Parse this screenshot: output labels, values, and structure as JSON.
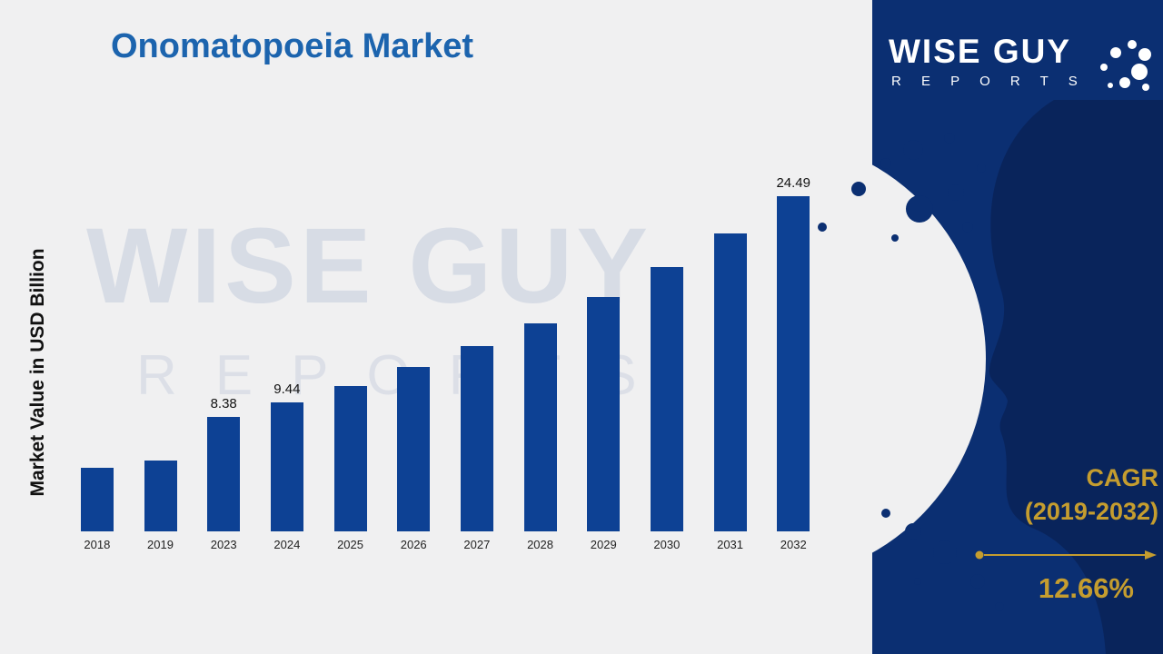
{
  "page": {
    "background": "#f0f0f1",
    "title": "Onomatopoeia Market",
    "title_color": "#1c64ae"
  },
  "chart_data": {
    "type": "bar",
    "title": "Onomatopoeia Market",
    "xlabel": "",
    "ylabel": "Market Value in USD Billion",
    "categories": [
      "2018",
      "2019",
      "2023",
      "2024",
      "2025",
      "2026",
      "2027",
      "2028",
      "2029",
      "2030",
      "2031",
      "2032"
    ],
    "values": [
      4.61,
      5.2,
      8.38,
      9.44,
      10.64,
      11.98,
      13.5,
      15.21,
      17.14,
      19.31,
      21.74,
      24.49
    ],
    "bar_labels": [
      "",
      "",
      "8.38",
      "9.44",
      "",
      "",
      "",
      "",
      "",
      "",
      "",
      "24.49"
    ],
    "unit": "USD Billion",
    "ylim": [
      0,
      26
    ],
    "grid": false,
    "legend": false,
    "bar_color": "#0d4194"
  },
  "branding": {
    "logo_line1": "WISE GUY",
    "logo_line2": "R E P O R T S",
    "watermark_line1": "WISE GUY",
    "watermark_line2": "REPORTS",
    "panel_color": "#0b2f72",
    "accent_gold": "#c59d2f"
  },
  "stats": {
    "cagr_label": "CAGR",
    "cagr_period": "(2019-2032)",
    "cagr_value": "12.66%"
  }
}
